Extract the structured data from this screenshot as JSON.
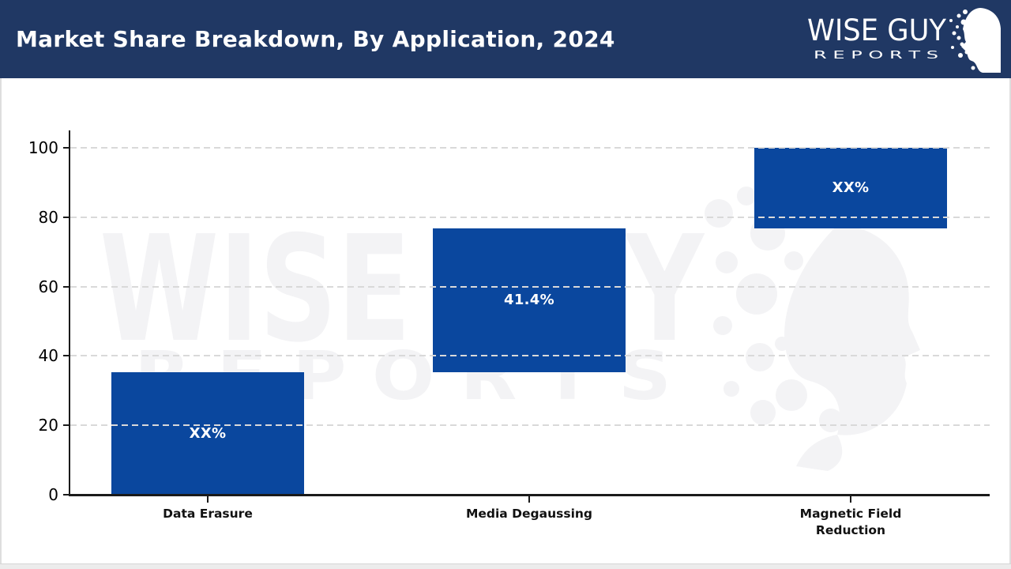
{
  "header": {
    "title": "Market Share Breakdown, By Application, 2024",
    "logo": {
      "line1": "WISE GUY",
      "line2": "R E P O R T S"
    }
  },
  "watermark": {
    "line1": "WISE GUY",
    "line2": "R E P O R T S"
  },
  "colors": {
    "header_bg": "#203864",
    "bar_fill": "#0a479e",
    "gridline": "#d9d9d9",
    "watermark": "#f3f3f5",
    "bar_label_text": "#ffffff",
    "axis": "#1a1a1a"
  },
  "chart_data": {
    "type": "bar",
    "subtype": "waterfall",
    "title": "Market Share Breakdown, By Application, 2024",
    "xlabel": "",
    "ylabel": "",
    "ylim": [
      0,
      105
    ],
    "grid": true,
    "y_ticks": [
      0,
      20,
      40,
      60,
      80,
      100
    ],
    "categories": [
      "Data Erasure",
      "Media Degaussing",
      "Magnetic Field\nReduction"
    ],
    "bars": [
      {
        "category": "Data Erasure",
        "start": 0,
        "end": 35.4,
        "value": 35.4,
        "label": "XX%"
      },
      {
        "category": "Media Degaussing",
        "start": 35.4,
        "end": 76.8,
        "value": 41.4,
        "label": "41.4%"
      },
      {
        "category": "Magnetic Field\nReduction",
        "start": 76.8,
        "end": 100,
        "value": 23.2,
        "label": "XX%"
      }
    ]
  }
}
